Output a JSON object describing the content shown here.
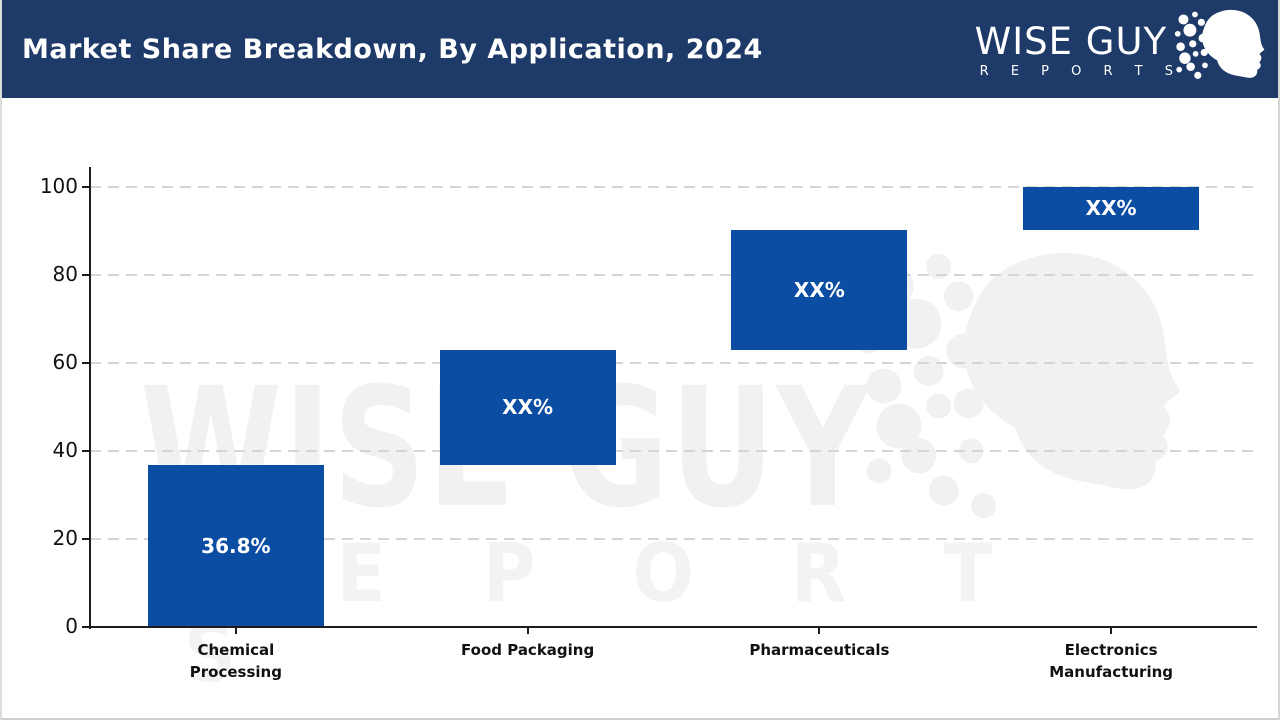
{
  "header": {
    "title": "Market Share Breakdown, By Application, 2024",
    "bg_color": "#1e3a68",
    "logo": {
      "name": "WISE GUY",
      "sub": "R E P O R T S"
    }
  },
  "watermark": {
    "line1": "WISE GUY",
    "line2": "R E P O R T S"
  },
  "chart_data": {
    "type": "bar",
    "subtype": "waterfall",
    "title": "Market Share Breakdown, By Application, 2024",
    "categories": [
      "Chemical\nProcessing",
      "Food Packaging",
      "Pharmaceuticals",
      "Electronics\nManufacturing"
    ],
    "series": [
      {
        "name": "Market Share",
        "segments": [
          {
            "category": "Chemical Processing",
            "start": 0,
            "end": 36.8,
            "label": "36.8%"
          },
          {
            "category": "Food Packaging",
            "start": 36.8,
            "end": 63.0,
            "label": "XX%"
          },
          {
            "category": "Pharmaceuticals",
            "start": 63.0,
            "end": 90.3,
            "label": "XX%"
          },
          {
            "category": "Electronics Manufacturing",
            "start": 90.3,
            "end": 100.0,
            "label": "XX%"
          }
        ]
      }
    ],
    "ylim": [
      0,
      100
    ],
    "yticks": [
      0,
      20,
      40,
      60,
      80,
      100
    ],
    "grid": "horizontal-dashed",
    "bar_color": "#0b4da2",
    "bar_label_color": "#ffffff",
    "xlabel": "",
    "ylabel": ""
  }
}
